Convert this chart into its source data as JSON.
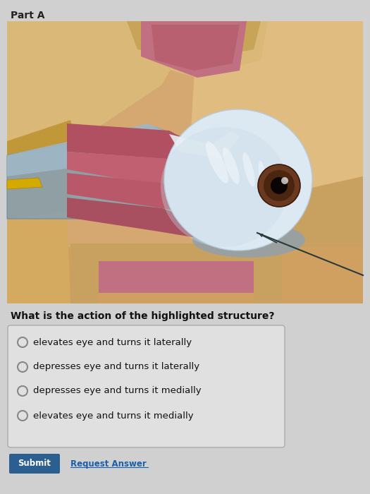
{
  "part_label": "Part A",
  "question": "What is the action of the highlighted structure?",
  "options": [
    "elevates eye and turns it laterally",
    "depresses eye and turns it laterally",
    "depresses eye and turns it medially",
    "elevates eye and turns it medially"
  ],
  "bg_color": "#d0d0d0",
  "submit_btn_color": "#2a5f8f",
  "submit_text": "Submit",
  "request_text": "Request Answer",
  "radio_color": "#888888",
  "option_box_bg": "#e0e0e0",
  "option_box_border": "#aaaaaa",
  "part_label_fontsize": 10,
  "question_fontsize": 10,
  "option_fontsize": 9.5,
  "fig_width": 5.25,
  "fig_height": 7.0
}
